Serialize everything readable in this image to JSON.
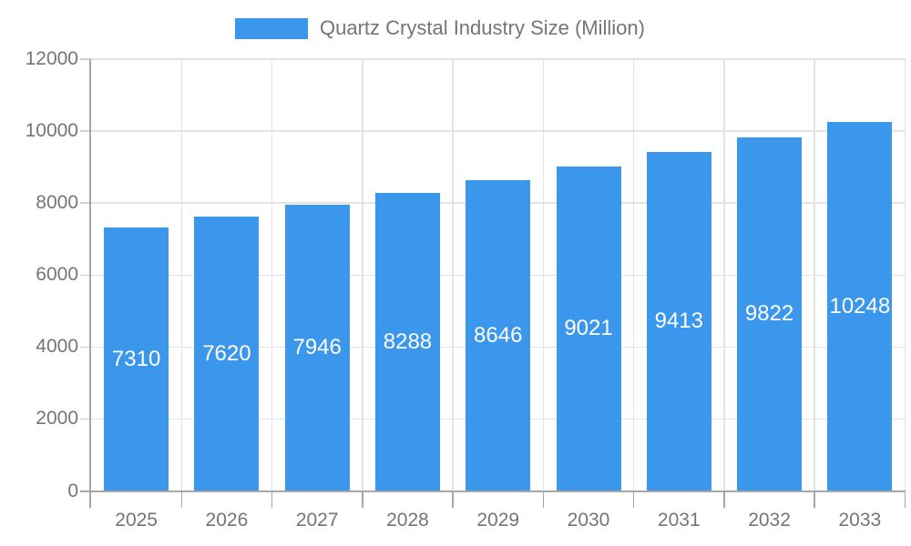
{
  "chart_data": {
    "type": "bar",
    "categories": [
      "2025",
      "2026",
      "2027",
      "2028",
      "2029",
      "2030",
      "2031",
      "2032",
      "2033"
    ],
    "series": [
      {
        "name": "Quartz Crystal Industry Size (Million)",
        "values": [
          7310,
          7620,
          7946,
          8288,
          8646,
          9021,
          9413,
          9822,
          10248
        ]
      }
    ],
    "title": "Quartz Crystal Industry Size (Million)",
    "xlabel": "",
    "ylabel": "",
    "ylim": [
      0,
      12000
    ],
    "ytick_step": 2000,
    "ytick_labels": [
      "0",
      "2000",
      "4000",
      "6000",
      "8000",
      "10000",
      "12000"
    ],
    "grid": true,
    "legend_position": "top",
    "value_labels_shown": true,
    "colors": {
      "bar": "#3B97EC",
      "gridline": "#E3E3E3",
      "axis_line": "#A6A6A6",
      "y_tick": "#CFCFCF",
      "axis_text": "#757575",
      "value_label": "#FFFFFF"
    }
  }
}
